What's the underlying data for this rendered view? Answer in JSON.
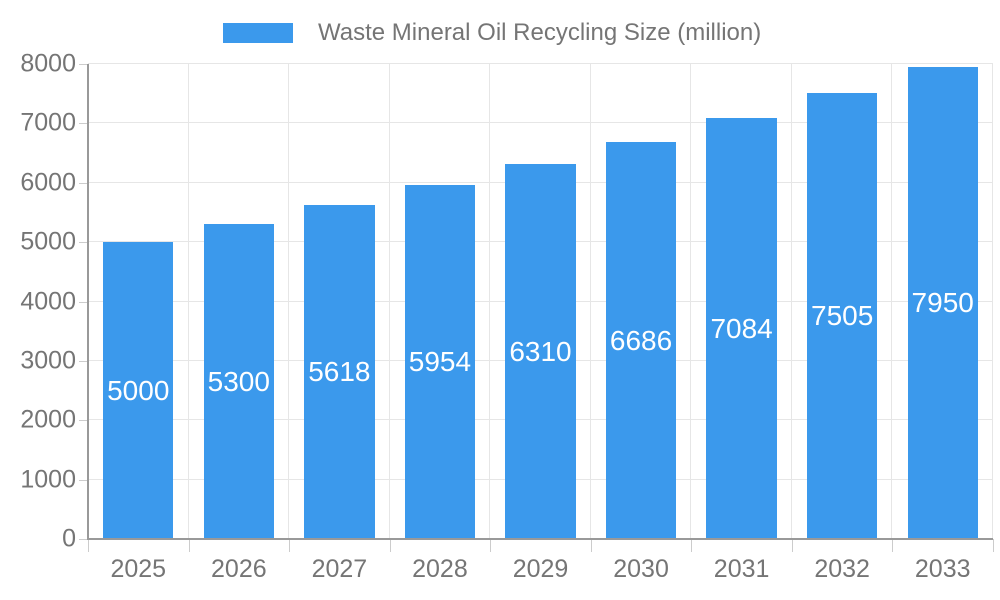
{
  "chart_data": {
    "type": "bar",
    "title": "Waste Mineral Oil Recycling Size (million)",
    "legend": [
      "Waste Mineral Oil Recycling Size (million)"
    ],
    "legend_position": "top",
    "categories": [
      "2025",
      "2026",
      "2027",
      "2028",
      "2029",
      "2030",
      "2031",
      "2032",
      "2033"
    ],
    "values": [
      5000,
      5300,
      5618,
      5954,
      6310,
      6686,
      7084,
      7505,
      7950
    ],
    "xlabel": "",
    "ylabel": "",
    "ylim": [
      0,
      8000
    ],
    "y_ticks": [
      0,
      1000,
      2000,
      3000,
      4000,
      5000,
      6000,
      7000,
      8000
    ],
    "grid": true,
    "bar_label_position": "inside-center"
  },
  "colors": {
    "bar": "#3B99EC",
    "bar_label": "#FFFFFF",
    "text": "#757575",
    "grid": "#E6E6E6",
    "axis": "#999999",
    "tick": "#CCCCCC",
    "background": "#FFFFFF"
  }
}
